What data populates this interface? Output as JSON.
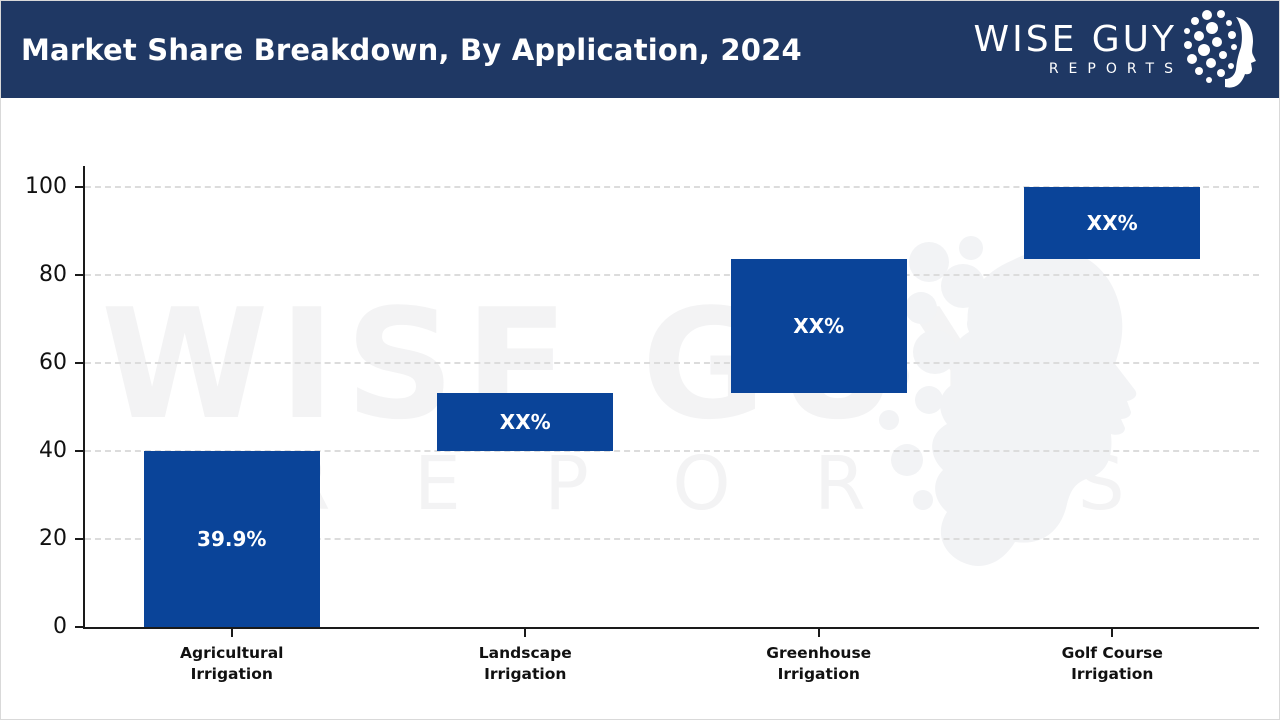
{
  "header": {
    "title": "Market Share Breakdown, By Application, 2024",
    "bg_color": "#1f3864",
    "logo": {
      "line1": "WISE GUY",
      "line2": "REPORTS"
    }
  },
  "watermark": {
    "line1": "WISE GUY",
    "line2": "R E P O R T S"
  },
  "chart_data": {
    "type": "bar",
    "subtype": "waterfall",
    "title": "Market Share Breakdown, By Application, 2024",
    "categories": [
      "Agricultural\nIrrigation",
      "Landscape\nIrrigation",
      "Greenhouse\nIrrigation",
      "Golf Course\nIrrigation"
    ],
    "series": [
      {
        "name": "Market share (%)",
        "segments": [
          {
            "category": "Agricultural Irrigation",
            "start": 0,
            "end": 39.9,
            "label": "39.9%"
          },
          {
            "category": "Landscape Irrigation",
            "start": 39.9,
            "end": 53.1,
            "label": "XX%"
          },
          {
            "category": "Greenhouse Irrigation",
            "start": 53.1,
            "end": 83.6,
            "label": "XX%"
          },
          {
            "category": "Golf Course Irrigation",
            "start": 83.6,
            "end": 100,
            "label": "XX%"
          }
        ]
      }
    ],
    "ylim": [
      0,
      100
    ],
    "yticks": [
      0,
      20,
      40,
      60,
      80,
      100
    ],
    "grid": "horizontal-dashed",
    "legend": "none",
    "bar_color": "#0a4499",
    "bar_label_color": "#ffffff"
  }
}
